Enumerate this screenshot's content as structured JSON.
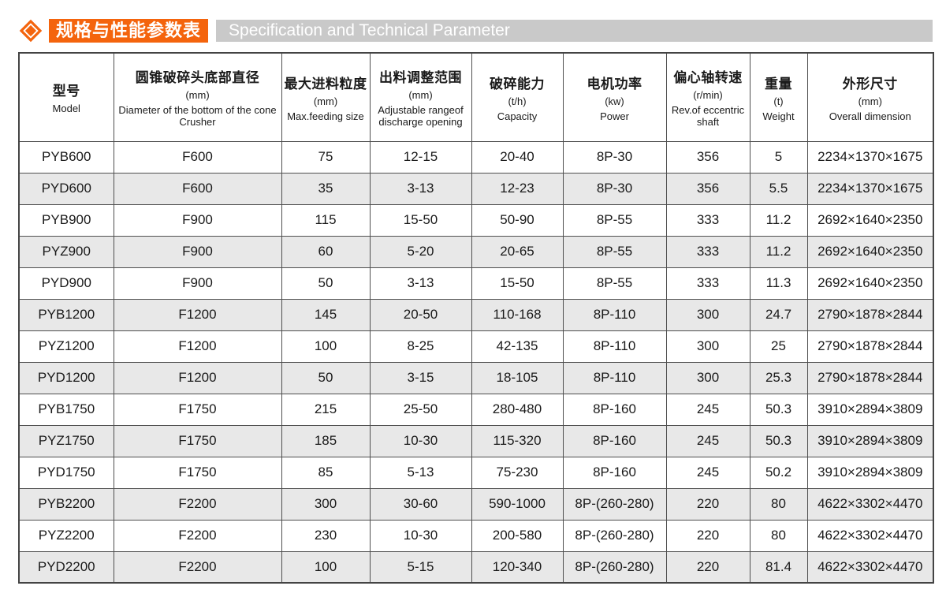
{
  "colors": {
    "accent": "#f4640d",
    "banner_gray": "#c9c9c9",
    "row_stripe": "#e8e8e8",
    "border": "#4f4f4f",
    "text": "#1a1a1a"
  },
  "title_bar": {
    "diamond_icon": "orange-diamond-icon",
    "zh_label": "规格与性能参数表",
    "en_label": "Specification and Technical Parameter"
  },
  "table": {
    "columns": [
      {
        "zh": "型号",
        "unit": "",
        "en": "Model"
      },
      {
        "zh": "圆锥破碎头底部直径",
        "unit": "(mm)",
        "en": "Diameter of the bottom of the cone Crusher"
      },
      {
        "zh": "最大进料粒度",
        "unit": "(mm)",
        "en": "Max.feeding size"
      },
      {
        "zh": "出料调整范围",
        "unit": "(mm)",
        "en": "Adjustable rangeof discharge opening"
      },
      {
        "zh": "破碎能力",
        "unit": "(t/h)",
        "en": "Capacity"
      },
      {
        "zh": "电机功率",
        "unit": "(kw)",
        "en": "Power"
      },
      {
        "zh": "偏心轴转速",
        "unit": "(r/min)",
        "en": "Rev.of eccentric shaft"
      },
      {
        "zh": "重量",
        "unit": "(t)",
        "en": "Weight"
      },
      {
        "zh": "外形尺寸",
        "unit": "(mm)",
        "en": "Overall dimension"
      }
    ],
    "rows": [
      [
        "PYB600",
        "F600",
        "75",
        "12-15",
        "20-40",
        "8P-30",
        "356",
        "5",
        "2234×1370×1675"
      ],
      [
        "PYD600",
        "F600",
        "35",
        "3-13",
        "12-23",
        "8P-30",
        "356",
        "5.5",
        "2234×1370×1675"
      ],
      [
        "PYB900",
        "F900",
        "115",
        "15-50",
        "50-90",
        "8P-55",
        "333",
        "11.2",
        "2692×1640×2350"
      ],
      [
        "PYZ900",
        "F900",
        "60",
        "5-20",
        "20-65",
        "8P-55",
        "333",
        "11.2",
        "2692×1640×2350"
      ],
      [
        "PYD900",
        "F900",
        "50",
        "3-13",
        "15-50",
        "8P-55",
        "333",
        "11.3",
        "2692×1640×2350"
      ],
      [
        "PYB1200",
        "F1200",
        "145",
        "20-50",
        "110-168",
        "8P-110",
        "300",
        "24.7",
        "2790×1878×2844"
      ],
      [
        "PYZ1200",
        "F1200",
        "100",
        "8-25",
        "42-135",
        "8P-110",
        "300",
        "25",
        "2790×1878×2844"
      ],
      [
        "PYD1200",
        "F1200",
        "50",
        "3-15",
        "18-105",
        "8P-110",
        "300",
        "25.3",
        "2790×1878×2844"
      ],
      [
        "PYB1750",
        "F1750",
        "215",
        "25-50",
        "280-480",
        "8P-160",
        "245",
        "50.3",
        "3910×2894×3809"
      ],
      [
        "PYZ1750",
        "F1750",
        "185",
        "10-30",
        "115-320",
        "8P-160",
        "245",
        "50.3",
        "3910×2894×3809"
      ],
      [
        "PYD1750",
        "F1750",
        "85",
        "5-13",
        "75-230",
        "8P-160",
        "245",
        "50.2",
        "3910×2894×3809"
      ],
      [
        "PYB2200",
        "F2200",
        "300",
        "30-60",
        "590-1000",
        "8P-(260-280)",
        "220",
        "80",
        "4622×3302×4470"
      ],
      [
        "PYZ2200",
        "F2200",
        "230",
        "10-30",
        "200-580",
        "8P-(260-280)",
        "220",
        "80",
        "4622×3302×4470"
      ],
      [
        "PYD2200",
        "F2200",
        "100",
        "5-15",
        "120-340",
        "8P-(260-280)",
        "220",
        "81.4",
        "4622×3302×4470"
      ]
    ]
  }
}
